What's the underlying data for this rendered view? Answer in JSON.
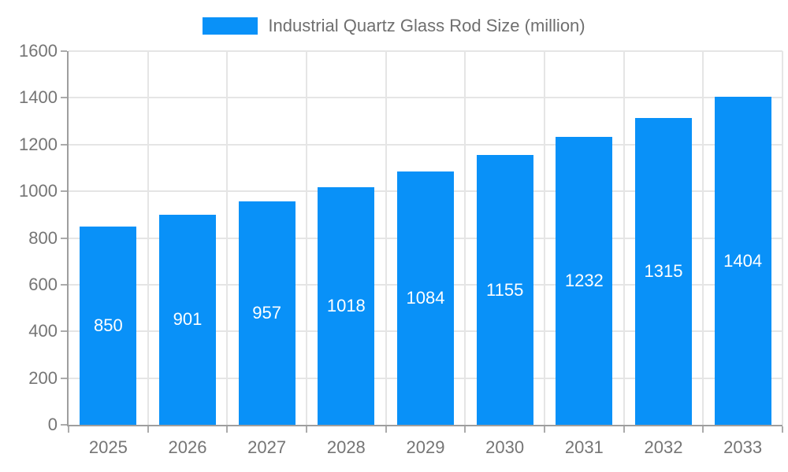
{
  "chart_data": {
    "type": "bar",
    "title": "Industrial Quartz Glass Rod Size (million)",
    "legend": [
      "Industrial Quartz Glass Rod Size (million)"
    ],
    "legend_position": "top-center",
    "categories": [
      "2025",
      "2026",
      "2027",
      "2028",
      "2029",
      "2030",
      "2031",
      "2032",
      "2033"
    ],
    "values": [
      850,
      901,
      957,
      1018,
      1084,
      1155,
      1232,
      1315,
      1404
    ],
    "value_labels": [
      "850",
      "901",
      "957",
      "1018",
      "1084",
      "1155",
      "1232",
      "1315",
      "1404"
    ],
    "xlabel": "",
    "ylabel": "",
    "ylim": [
      0,
      1600
    ],
    "yticks": [
      0,
      200,
      400,
      600,
      800,
      1000,
      1200,
      1400,
      1600
    ],
    "grid": true,
    "bar_color": "#0991f8",
    "value_label_color": "#ffffff"
  },
  "colors": {
    "background": "#ffffff",
    "axis_line": "#9e9e9e",
    "tick_mark": "#ababab",
    "grid_line": "#e5e5e5",
    "tick_text": "#757575",
    "legend_text": "#6f6f6f"
  }
}
